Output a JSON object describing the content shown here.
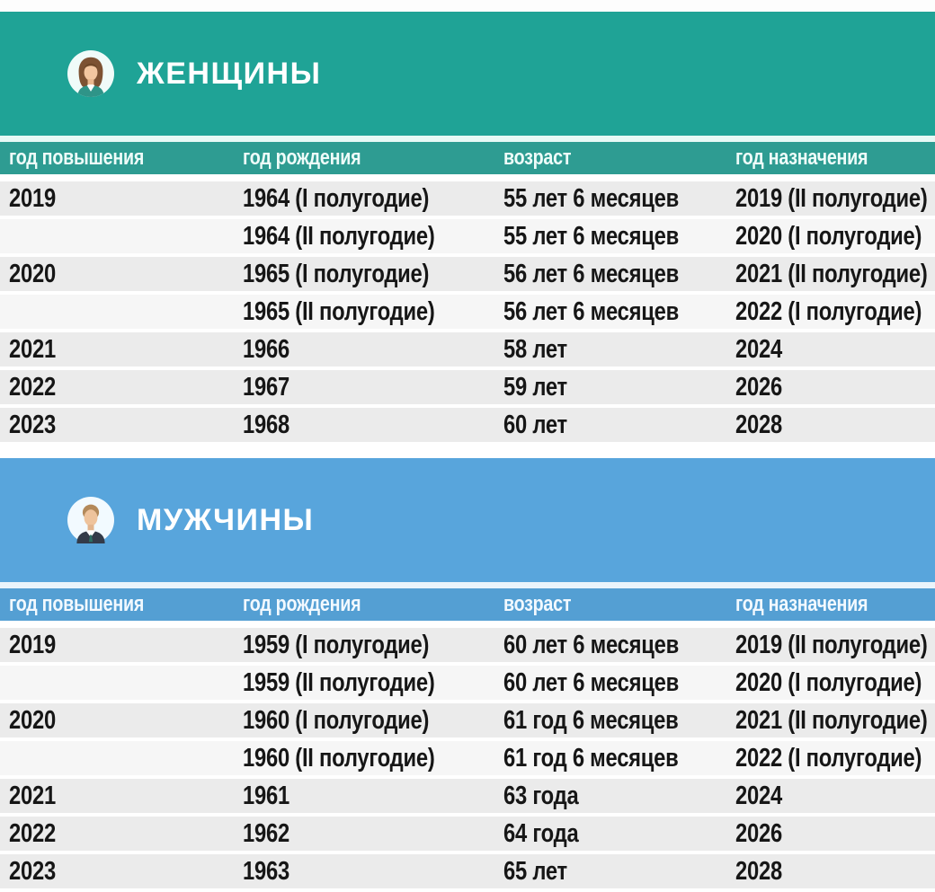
{
  "page": {
    "background": "#ffffff"
  },
  "chart_data": [
    {
      "type": "table",
      "title": "ЖЕНЩИНЫ",
      "columns": [
        "год повышения",
        "год рождения",
        "возраст",
        "год назначения"
      ],
      "rows": [
        [
          "2019",
          "1964 (I полугодие)",
          "55 лет 6 месяцев",
          "2019 (II полугодие)"
        ],
        [
          "",
          "1964 (II полугодие)",
          "55 лет 6 месяцев",
          "2020 (I полугодие)"
        ],
        [
          "2020",
          "1965 (I полугодие)",
          "56 лет 6 месяцев",
          "2021 (II полугодие)"
        ],
        [
          "",
          "1965 (II полугодие)",
          "56 лет 6 месяцев",
          "2022 (I полугодие)"
        ],
        [
          "2021",
          "1966",
          "58 лет",
          "2024"
        ],
        [
          "2022",
          "1967",
          "59 лет",
          "2026"
        ],
        [
          "2023",
          "1968",
          "60 лет",
          "2028"
        ]
      ]
    },
    {
      "type": "table",
      "title": "МУЖЧИНЫ",
      "columns": [
        "год повышения",
        "год рождения",
        "возраст",
        "год назначения"
      ],
      "rows": [
        [
          "2019",
          "1959 (I полугодие)",
          "60 лет 6 месяцев",
          "2019 (II полугодие)"
        ],
        [
          "",
          "1959 (II полугодие)",
          "60 лет 6 месяцев",
          "2020 (I полугодие)"
        ],
        [
          "2020",
          "1960 (I полугодие)",
          "61 год 6 месяцев",
          "2021 (II полугодие)"
        ],
        [
          "",
          "1960 (II полугодие)",
          "61 год 6 месяцев",
          "2022 (I полугодие)"
        ],
        [
          "2021",
          "1961",
          "63 года",
          "2024"
        ],
        [
          "2022",
          "1962",
          "64 года",
          "2026"
        ],
        [
          "2023",
          "1963",
          "65 лет",
          "2028"
        ]
      ]
    }
  ],
  "sections": [
    {
      "icon": "woman-avatar-icon",
      "colors": {
        "banner": "#1fa396",
        "header": "#2e9c92",
        "strip": "#e7f9f5",
        "header_text": "#eefcf9"
      }
    },
    {
      "icon": "man-avatar-icon",
      "colors": {
        "banner": "#58a5dc",
        "header": "#549fd3",
        "strip": "#eaf4fb",
        "header_text": "#f2f9ff"
      }
    }
  ],
  "row_colors": {
    "primary": "#ebebeb",
    "secondary": "#f6f6f6",
    "gap": "#ffffff",
    "text": "#161616"
  }
}
